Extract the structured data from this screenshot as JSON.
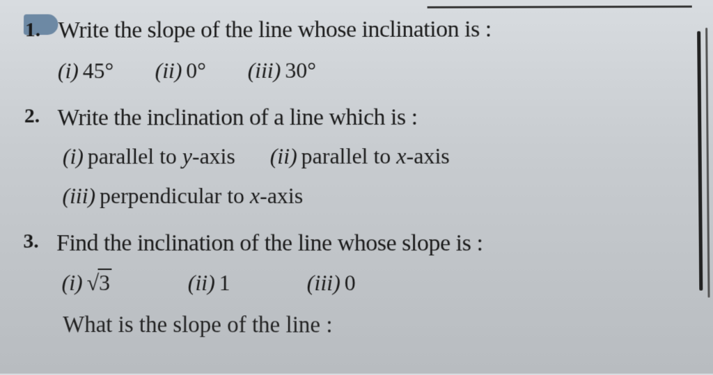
{
  "colors": {
    "background_top": "#d8dce0",
    "background_bottom": "#b8bcc0",
    "text": "#1a1a1a",
    "bullet": "#5a7a9a",
    "border": "#222222"
  },
  "typography": {
    "font_family": "Georgia, Times New Roman, serif",
    "question_fontsize": 34,
    "option_fontsize": 32,
    "number_fontsize": 30
  },
  "questions": [
    {
      "number": "1.",
      "text": "Write the slope of the line whose inclination is :",
      "options": [
        {
          "label": "(i)",
          "value": "45°"
        },
        {
          "label": "(ii)",
          "value": "0°"
        },
        {
          "label": "(iii)",
          "value": "30°"
        }
      ]
    },
    {
      "number": "2.",
      "text": "Write the inclination of a line which is :",
      "options": [
        {
          "label": "(i)",
          "value": "parallel to y-axis"
        },
        {
          "label": "(ii)",
          "value": "parallel to x-axis"
        },
        {
          "label": "(iii)",
          "value": "perpendicular to x-axis"
        }
      ]
    },
    {
      "number": "3.",
      "text": "Find the inclination of the line whose slope is :",
      "options": [
        {
          "label": "(i)",
          "value": "√3"
        },
        {
          "label": "(ii)",
          "value": "1"
        },
        {
          "label": "(iii)",
          "value": "0"
        }
      ]
    }
  ],
  "partial_text": "What is the slope of the line :"
}
